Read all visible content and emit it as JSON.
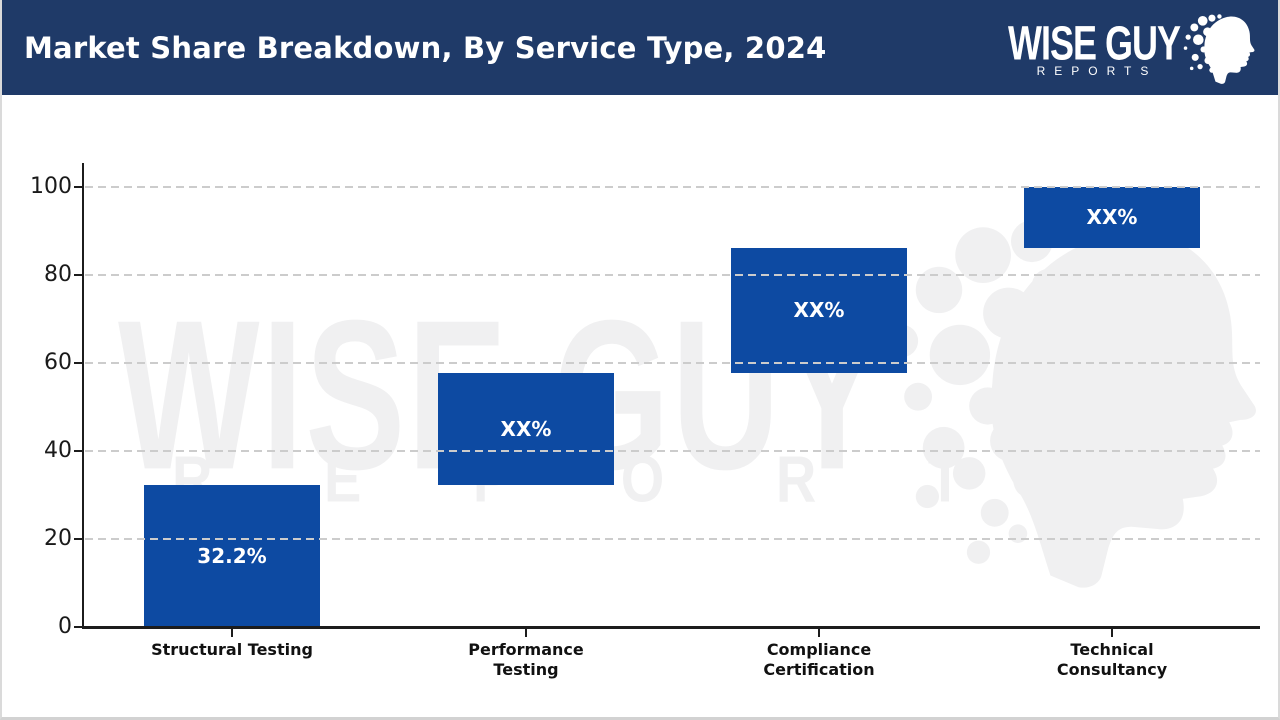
{
  "header": {
    "title": "Market Share Breakdown, By Service Type, 2024",
    "logo_line1": "WISE GUY",
    "logo_line2": "REPORTS",
    "bg_color": "#1f3a68"
  },
  "watermark": {
    "line1": "WISE GUY",
    "line2": "R E P O R T S"
  },
  "colors": {
    "bar": "#0d4aa2",
    "header_bg": "#1f3a68",
    "gridline": "#cccccc",
    "watermark": "#f0f0f1"
  },
  "chart_data": {
    "type": "bar",
    "subtype": "waterfall",
    "title": "Market Share Breakdown, By Service Type, 2024",
    "xlabel": "",
    "ylabel": "",
    "categories": [
      "Structural Testing",
      "Performance Testing",
      "Compliance Certification",
      "Technical Consultancy"
    ],
    "category_lines": [
      [
        "Structural Testing"
      ],
      [
        "Performance",
        "Testing"
      ],
      [
        "Compliance",
        "Certification"
      ],
      [
        "Technical",
        "Consultancy"
      ]
    ],
    "segments": [
      {
        "category": "Structural Testing",
        "start": 0,
        "end": 32.2,
        "label": "32.2%"
      },
      {
        "category": "Performance Testing",
        "start": 32.2,
        "end": 57.7,
        "label": "XX%"
      },
      {
        "category": "Compliance Certification",
        "start": 57.7,
        "end": 86.2,
        "label": "XX%"
      },
      {
        "category": "Technical Consultancy",
        "start": 86.2,
        "end": 100,
        "label": "XX%"
      }
    ],
    "yticks": [
      0,
      20,
      40,
      60,
      80,
      100
    ],
    "ylim": [
      0,
      105.5
    ],
    "grid": "horizontal-dashed",
    "legend": "none",
    "bar_color": "#0d4aa2"
  }
}
